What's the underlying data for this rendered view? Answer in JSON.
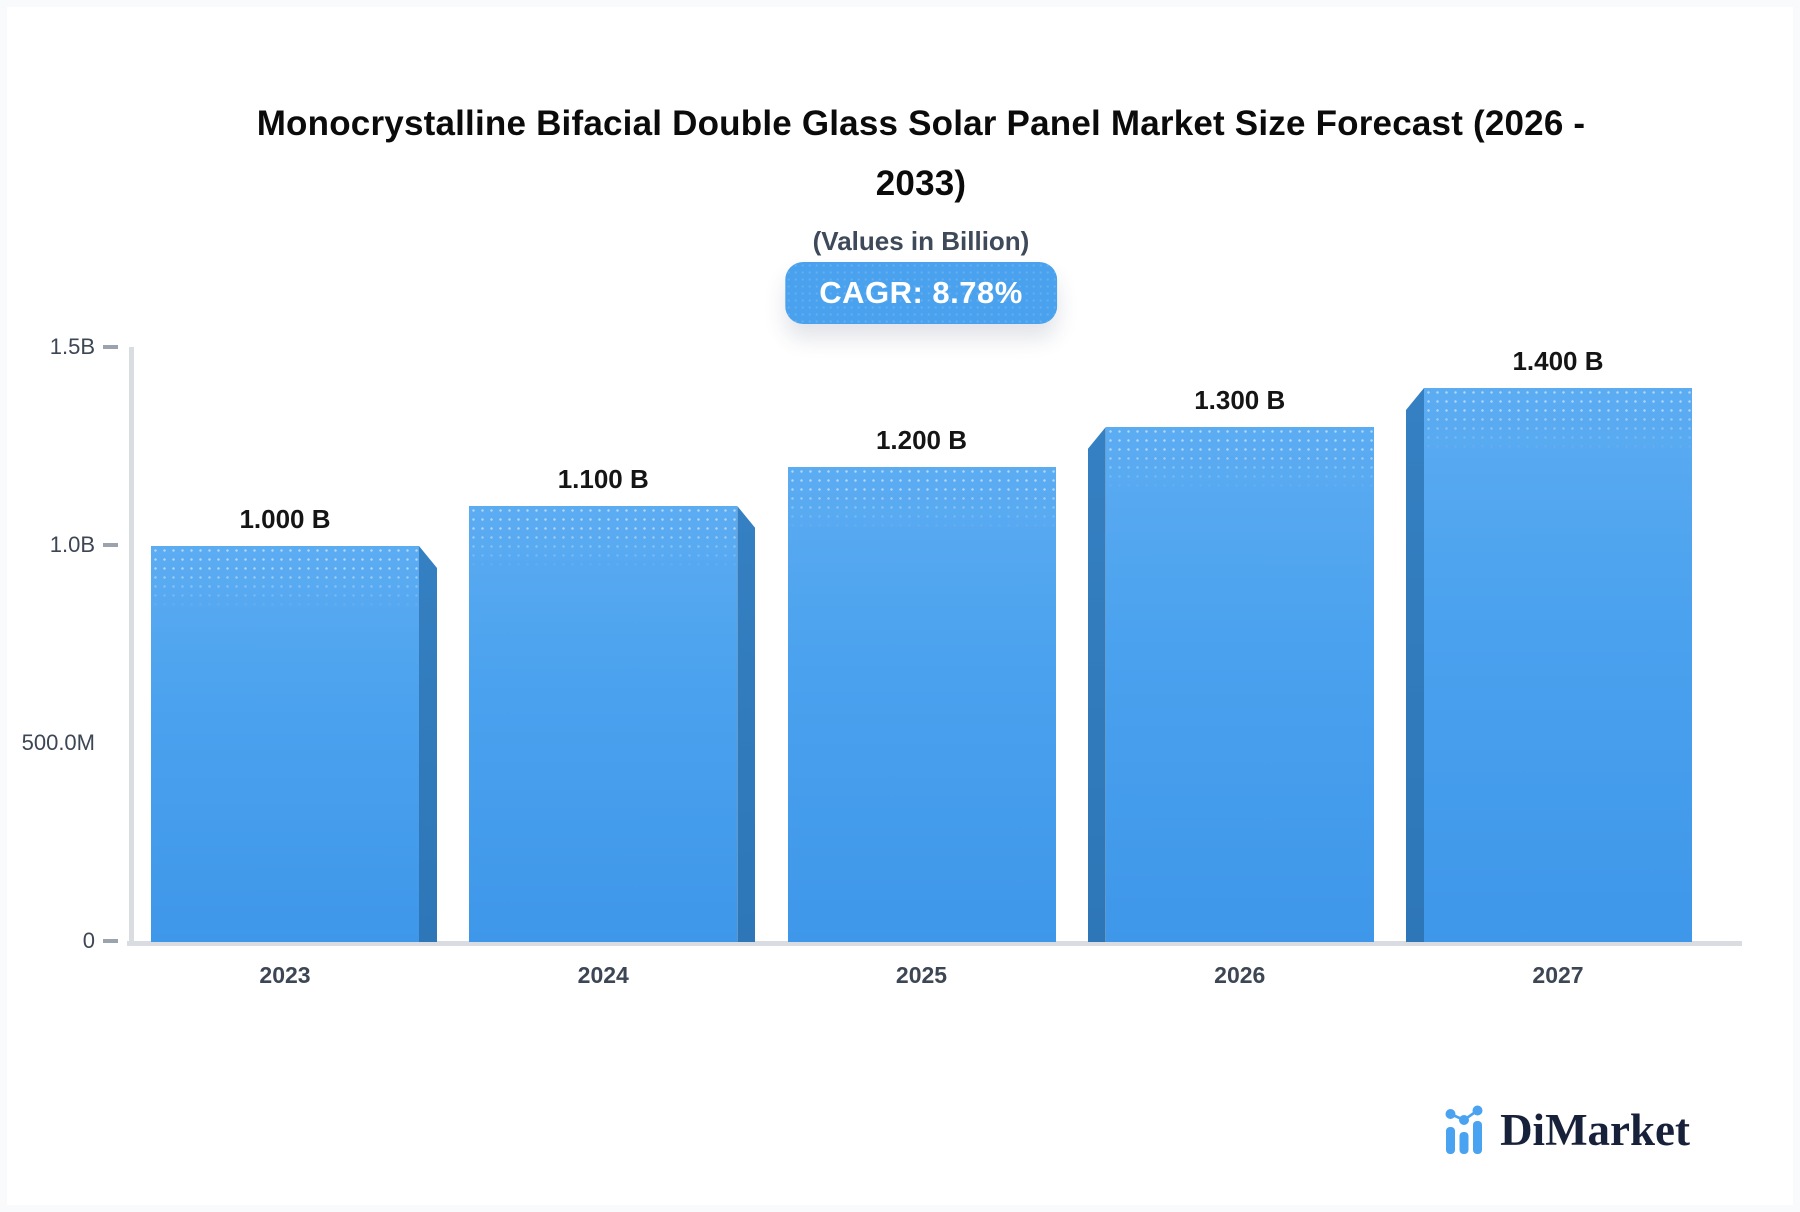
{
  "header": {
    "title": "Monocrystalline Bifacial Double Glass Solar Panel Market Size Forecast (2026 - 2033)",
    "title_lines": [
      "Monocrystalline Bifacial Double Glass Solar Panel Market Size Forecast (2026 -",
      "2033)"
    ],
    "subtitle": "(Values in Billion)",
    "cagr_badge": "CAGR: 8.78%"
  },
  "brand": {
    "name": "DiMarket",
    "logo_icon": "bar-chart-with-dots-icon"
  },
  "colors": {
    "bar_face": "#4ba2ee",
    "bar_side": "#2e78b9",
    "badge_bg": "#4aa2ee",
    "axis_line": "#d9dce1",
    "axis_text": "#3d4654",
    "logo_navy": "#17223a",
    "logo_blue": "#4aa3f0",
    "background": "#ffffff"
  },
  "chart_data": {
    "type": "bar",
    "title": "Monocrystalline Bifacial Double Glass Solar Panel Market Size Forecast (2026 - 2033)",
    "subtitle": "(Values in Billion)",
    "cagr_percent": 8.78,
    "unit": "Billion",
    "categories": [
      "2023",
      "2024",
      "2025",
      "2026",
      "2027"
    ],
    "values": [
      1.0,
      1.1,
      1.2,
      1.3,
      1.4
    ],
    "value_labels": [
      "1.000 B",
      "1.100 B",
      "1.200 B",
      "1.300 B",
      "1.400 B"
    ],
    "xlabel": "",
    "ylabel": "",
    "ylim": [
      0,
      1.5
    ],
    "yticks": [
      {
        "label": "1.5B",
        "value": 1.5,
        "tick": true
      },
      {
        "label": "1.0B",
        "value": 1.0,
        "tick": true
      },
      {
        "label": "500.0M",
        "value": 0.5,
        "tick": false
      },
      {
        "label": "0",
        "value": 0.0,
        "tick": true
      }
    ],
    "grid": false,
    "legend": false
  }
}
